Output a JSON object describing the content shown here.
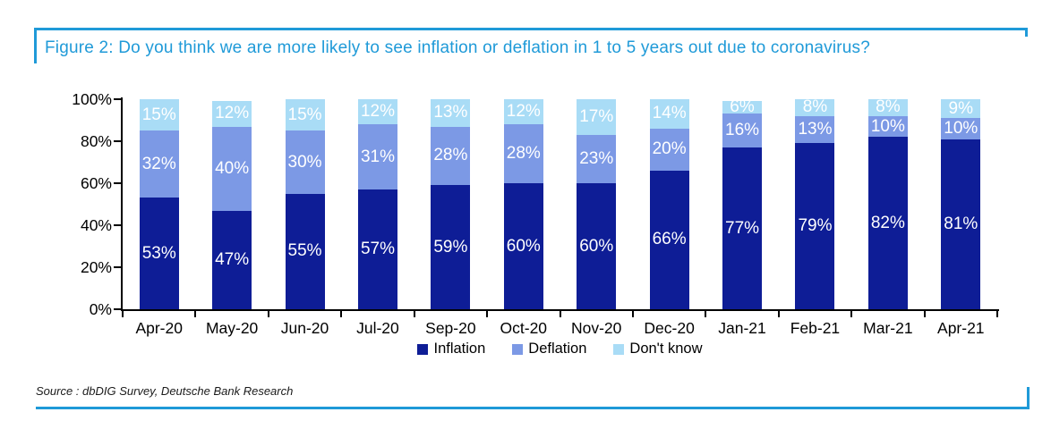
{
  "figure": {
    "title": "Figure 2: Do you think we are more likely to see inflation or deflation in 1 to 5 years out due to coronavirus?",
    "source": "Source : dbDIG Survey, Deutsche Bank Research"
  },
  "colors": {
    "accent_blue": "#1F9AD8",
    "inflation": "#0E1D96",
    "deflation": "#7C99E5",
    "dont_know": "#A9DCF6",
    "axis": "#000000",
    "bar_label_text": "#FFFFFF"
  },
  "chart_data": {
    "type": "bar",
    "stacked": true,
    "title": "Do you think we are more likely to see inflation or deflation in 1 to 5 years out due to coronavirus?",
    "categories": [
      "Apr-20",
      "May-20",
      "Jun-20",
      "Jul-20",
      "Sep-20",
      "Oct-20",
      "Nov-20",
      "Dec-20",
      "Jan-21",
      "Feb-21",
      "Mar-21",
      "Apr-21"
    ],
    "series": [
      {
        "name": "Inflation",
        "color_key": "inflation",
        "values": [
          53,
          47,
          55,
          57,
          59,
          60,
          60,
          66,
          77,
          79,
          82,
          81
        ]
      },
      {
        "name": "Deflation",
        "color_key": "deflation",
        "values": [
          32,
          40,
          30,
          31,
          28,
          28,
          23,
          20,
          16,
          13,
          10,
          10
        ]
      },
      {
        "name": "Don't know",
        "color_key": "dont_know",
        "values": [
          15,
          12,
          15,
          12,
          13,
          12,
          17,
          14,
          6,
          8,
          8,
          9
        ]
      }
    ],
    "xlabel": "",
    "ylabel": "",
    "ylim": [
      0,
      100
    ],
    "y_tick_values": [
      0,
      20,
      40,
      60,
      80,
      100
    ],
    "y_ticks": [
      "0%",
      "20%",
      "40%",
      "60%",
      "80%",
      "100%"
    ],
    "data_label_suffix": "%",
    "grid": false,
    "legend_position": "bottom"
  }
}
